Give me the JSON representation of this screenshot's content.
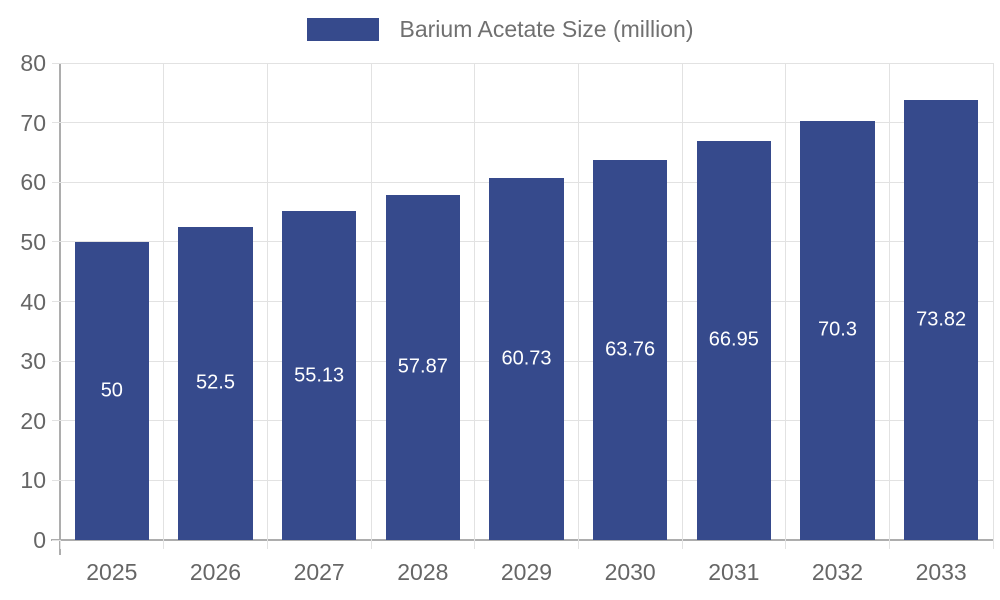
{
  "legend": {
    "label": "Barium Acetate Size (million)"
  },
  "chart_data": {
    "type": "bar",
    "title": "Barium Acetate Size (million)",
    "series_name": "Barium Acetate Size (million)",
    "categories": [
      "2025",
      "2026",
      "2027",
      "2028",
      "2029",
      "2030",
      "2031",
      "2032",
      "2033"
    ],
    "values": [
      50,
      52.5,
      55.13,
      57.87,
      60.73,
      63.76,
      66.95,
      70.3,
      73.82
    ],
    "value_labels": [
      "50",
      "52.5",
      "55.13",
      "57.87",
      "60.73",
      "63.76",
      "66.95",
      "70.3",
      "73.82"
    ],
    "xlabel": "",
    "ylabel": "",
    "ylim": [
      0,
      80
    ],
    "ytick_step": 10,
    "yticks": [
      0,
      10,
      20,
      30,
      40,
      50,
      60,
      70,
      80
    ],
    "grid": true,
    "legend_position": "top-center",
    "bar_color": "#364a8c",
    "grid_color": "#e2e2e2",
    "axis_color": "#adadad",
    "tick_label_color": "#666666",
    "legend_text_color": "#707070",
    "value_label_color": "#ffffff"
  }
}
